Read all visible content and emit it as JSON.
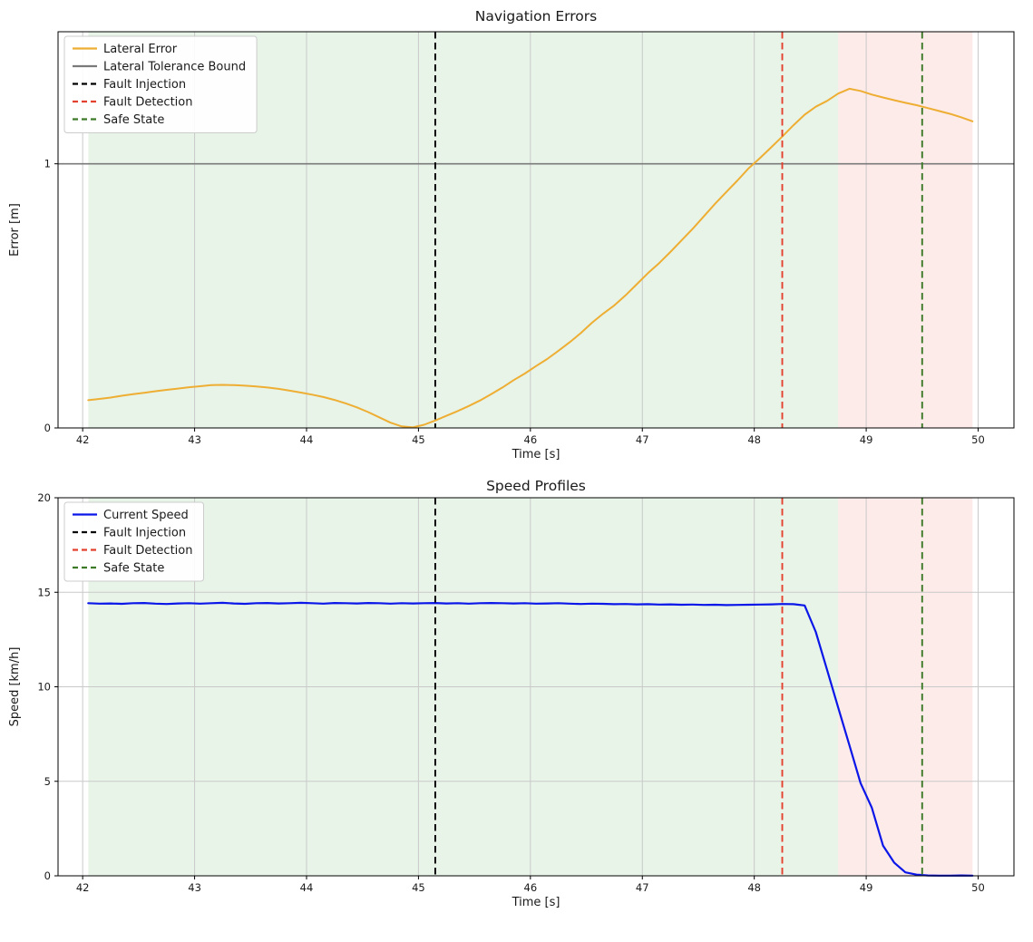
{
  "figure": {
    "background": "#ffffff"
  },
  "chart_data": [
    {
      "type": "line",
      "title": "Navigation Errors",
      "xlabel": "Time [s]",
      "ylabel": "Error [m]",
      "xlim": [
        41.78,
        50.32
      ],
      "ylim": [
        0,
        1.5
      ],
      "xticks": [
        42,
        43,
        44,
        45,
        46,
        47,
        48,
        49,
        50
      ],
      "yticks": [
        0,
        1
      ],
      "grid": true,
      "grid_color": "#c9c9c9",
      "legend_position": "top-left",
      "x": [
        42.05,
        42.15,
        42.25,
        42.35,
        42.45,
        42.55,
        42.65,
        42.75,
        42.85,
        42.95,
        43.05,
        43.15,
        43.25,
        43.35,
        43.45,
        43.55,
        43.65,
        43.75,
        43.85,
        43.95,
        44.05,
        44.15,
        44.25,
        44.35,
        44.45,
        44.55,
        44.65,
        44.75,
        44.85,
        44.95,
        45.05,
        45.15,
        45.25,
        45.35,
        45.45,
        45.55,
        45.65,
        45.75,
        45.85,
        45.95,
        46.05,
        46.15,
        46.25,
        46.35,
        46.45,
        46.55,
        46.65,
        46.75,
        46.85,
        46.95,
        47.05,
        47.15,
        47.25,
        47.35,
        47.45,
        47.55,
        47.65,
        47.75,
        47.85,
        47.95,
        48.05,
        48.15,
        48.25,
        48.35,
        48.45,
        48.55,
        48.65,
        48.75,
        48.85,
        48.95,
        49.05,
        49.15,
        49.25,
        49.35,
        49.45,
        49.55,
        49.65,
        49.75,
        49.85,
        49.95
      ],
      "series": [
        {
          "name": "Lateral Error",
          "color": "#eeae33",
          "width": 2,
          "y": [
            0.105,
            0.11,
            0.115,
            0.122,
            0.128,
            0.133,
            0.139,
            0.144,
            0.149,
            0.154,
            0.158,
            0.162,
            0.163,
            0.162,
            0.16,
            0.157,
            0.153,
            0.148,
            0.141,
            0.134,
            0.126,
            0.117,
            0.106,
            0.093,
            0.078,
            0.06,
            0.04,
            0.02,
            0.006,
            0.002,
            0.012,
            0.028,
            0.046,
            0.064,
            0.083,
            0.104,
            0.128,
            0.153,
            0.181,
            0.206,
            0.234,
            0.261,
            0.292,
            0.324,
            0.359,
            0.398,
            0.433,
            0.464,
            0.502,
            0.544,
            0.586,
            0.624,
            0.666,
            0.71,
            0.754,
            0.801,
            0.849,
            0.893,
            0.937,
            0.983,
            1.021,
            1.062,
            1.103,
            1.146,
            1.186,
            1.216,
            1.238,
            1.266,
            1.284,
            1.276,
            1.262,
            1.251,
            1.241,
            1.231,
            1.222,
            1.211,
            1.2,
            1.189,
            1.176,
            1.161
          ]
        }
      ],
      "hlines": [
        {
          "name": "Lateral Tolerance Bound",
          "y": 1.0,
          "color": "#7a7a7a"
        }
      ],
      "events": [
        {
          "name": "Fault Injection",
          "x": 45.15,
          "color": "#000000"
        },
        {
          "name": "Fault Detection",
          "x": 48.25,
          "color": "#e3402e"
        },
        {
          "name": "Safe State",
          "x": 49.5,
          "color": "#3c7a28"
        }
      ],
      "regions": [
        {
          "name": "nominal-region",
          "x0": 42.05,
          "x1": 48.75,
          "color": "rgba(0,128,0,0.09)"
        },
        {
          "name": "fault-region",
          "x0": 48.75,
          "x1": 49.95,
          "color": "rgba(235,60,40,0.10)"
        }
      ],
      "legend": [
        {
          "label": "Lateral Error",
          "color": "#eeae33",
          "dashed": false
        },
        {
          "label": "Lateral Tolerance Bound",
          "color": "#7a7a7a",
          "dashed": false
        },
        {
          "label": "Fault Injection",
          "color": "#000000",
          "dashed": true
        },
        {
          "label": "Fault Detection",
          "color": "#e3402e",
          "dashed": true
        },
        {
          "label": "Safe State",
          "color": "#3c7a28",
          "dashed": true
        }
      ]
    },
    {
      "type": "line",
      "title": "Speed Profiles",
      "xlabel": "Time [s]",
      "ylabel": "Speed [km/h]",
      "xlim": [
        41.78,
        50.32
      ],
      "ylim": [
        0,
        20
      ],
      "xticks": [
        42,
        43,
        44,
        45,
        46,
        47,
        48,
        49,
        50
      ],
      "yticks": [
        0,
        5,
        10,
        15,
        20
      ],
      "grid": true,
      "grid_color": "#c9c9c9",
      "legend_position": "top-left",
      "x": [
        42.05,
        42.15,
        42.25,
        42.35,
        42.45,
        42.55,
        42.65,
        42.75,
        42.85,
        42.95,
        43.05,
        43.15,
        43.25,
        43.35,
        43.45,
        43.55,
        43.65,
        43.75,
        43.85,
        43.95,
        44.05,
        44.15,
        44.25,
        44.35,
        44.45,
        44.55,
        44.65,
        44.75,
        44.85,
        44.95,
        45.05,
        45.15,
        45.25,
        45.35,
        45.45,
        45.55,
        45.65,
        45.75,
        45.85,
        45.95,
        46.05,
        46.15,
        46.25,
        46.35,
        46.45,
        46.55,
        46.65,
        46.75,
        46.85,
        46.95,
        47.05,
        47.15,
        47.25,
        47.35,
        47.45,
        47.55,
        47.65,
        47.75,
        47.85,
        47.95,
        48.05,
        48.15,
        48.25,
        48.35,
        48.45,
        48.55,
        48.65,
        48.75,
        48.85,
        48.95,
        49.05,
        49.15,
        49.25,
        49.35,
        49.45,
        49.55,
        49.65,
        49.75,
        49.85,
        49.95
      ],
      "series": [
        {
          "name": "Current Speed",
          "color": "#0b16e8",
          "width": 2.2,
          "y": [
            14.42,
            14.4,
            14.41,
            14.39,
            14.42,
            14.43,
            14.4,
            14.38,
            14.41,
            14.42,
            14.4,
            14.42,
            14.44,
            14.41,
            14.39,
            14.42,
            14.43,
            14.41,
            14.42,
            14.44,
            14.42,
            14.4,
            14.43,
            14.42,
            14.41,
            14.43,
            14.42,
            14.4,
            14.42,
            14.41,
            14.42,
            14.43,
            14.41,
            14.42,
            14.4,
            14.42,
            14.43,
            14.42,
            14.41,
            14.42,
            14.4,
            14.41,
            14.42,
            14.4,
            14.38,
            14.4,
            14.39,
            14.37,
            14.38,
            14.36,
            14.37,
            14.35,
            14.36,
            14.34,
            14.35,
            14.33,
            14.34,
            14.32,
            14.33,
            14.34,
            14.35,
            14.36,
            14.38,
            14.37,
            14.3,
            12.9,
            10.9,
            8.9,
            6.9,
            4.9,
            3.6,
            1.6,
            0.7,
            0.18,
            0.06,
            0.02,
            0.01,
            0.01,
            0.02,
            0.01
          ]
        }
      ],
      "hlines": [],
      "events": [
        {
          "name": "Fault Injection",
          "x": 45.15,
          "color": "#000000"
        },
        {
          "name": "Fault Detection",
          "x": 48.25,
          "color": "#e3402e"
        },
        {
          "name": "Safe State",
          "x": 49.5,
          "color": "#3c7a28"
        }
      ],
      "regions": [
        {
          "name": "nominal-region",
          "x0": 42.05,
          "x1": 48.75,
          "color": "rgba(0,128,0,0.09)"
        },
        {
          "name": "fault-region",
          "x0": 48.75,
          "x1": 49.95,
          "color": "rgba(235,60,40,0.10)"
        }
      ],
      "legend": [
        {
          "label": "Current Speed",
          "color": "#0b16e8",
          "dashed": false
        },
        {
          "label": "Fault Injection",
          "color": "#000000",
          "dashed": true
        },
        {
          "label": "Fault Detection",
          "color": "#e3402e",
          "dashed": true
        },
        {
          "label": "Safe State",
          "color": "#3c7a28",
          "dashed": true
        }
      ]
    }
  ]
}
